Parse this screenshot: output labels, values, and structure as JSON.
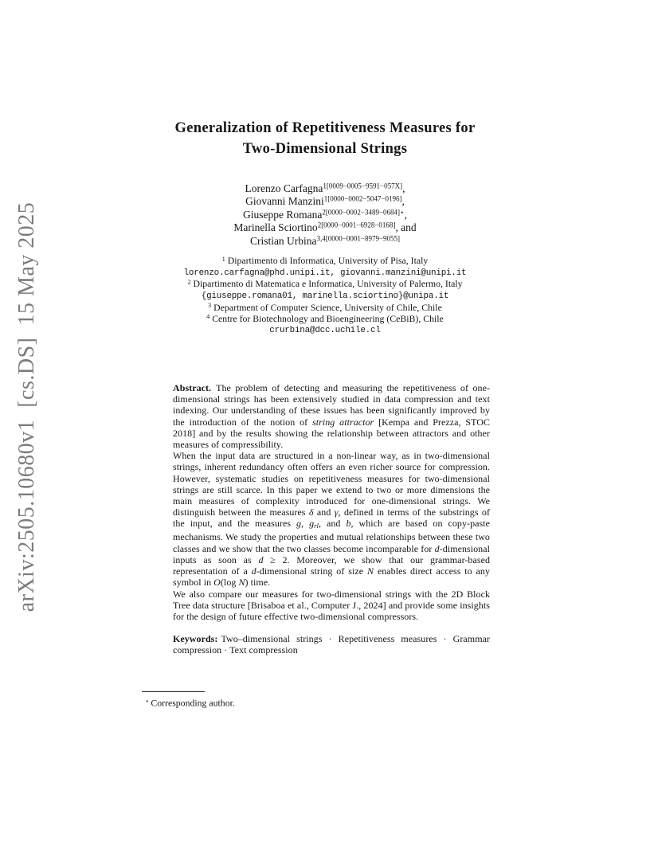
{
  "colors": {
    "text": "#161616",
    "watermark": "#7c7c7c"
  },
  "watermark": {
    "text": "arXiv:2505.10680v1  [cs.DS]  15 May 2025"
  },
  "title": {
    "line1": "Generalization of Repetitiveness Measures for",
    "line2": "Two-Dimensional Strings"
  },
  "authors": [
    {
      "name": "Lorenzo Carfagna",
      "orcid_sup": "1[0009−0005−9591−057X]",
      "suffix": ","
    },
    {
      "name": "Giovanni Manzini",
      "orcid_sup": "1[0000−0002−5047−0196]",
      "suffix": ","
    },
    {
      "name": "Giuseppe Romana",
      "orcid_sup": "2[0000−0002−3489−0684]⋆",
      "suffix": ","
    },
    {
      "name": "Marinella Sciortino",
      "orcid_sup": "2[0000−0001−6928−0168]",
      "suffix": ", and"
    },
    {
      "name": "Cristian Urbina",
      "orcid_sup": "3,4[0000−0001−8979−9055]",
      "suffix": ""
    }
  ],
  "affiliations": [
    {
      "sup": "1",
      "style": "plain",
      "text": "Dipartimento di Informatica, University of Pisa, Italy"
    },
    {
      "sup": "",
      "style": "mono",
      "text": "lorenzo.carfagna@phd.unipi.it, giovanni.manzini@unipi.it"
    },
    {
      "sup": "2",
      "style": "plain",
      "text": "Dipartimento di Matematica e Informatica, University of Palermo, Italy"
    },
    {
      "sup": "",
      "style": "mono",
      "text": "{giuseppe.romana01, marinella.sciortino}@unipa.it"
    },
    {
      "sup": "3",
      "style": "plain",
      "text": "Department of Computer Science, University of Chile, Chile"
    },
    {
      "sup": "4",
      "style": "plain",
      "text": "Centre for Biotechnology and Bioengineering (CeBiB), Chile"
    },
    {
      "sup": "",
      "style": "mono",
      "text": "crurbina@dcc.uchile.cl"
    }
  ],
  "abstract": {
    "label": "Abstract.",
    "paragraphs": [
      [
        {
          "t": "The problem of detecting and measuring the repetitiveness of one-dimensional strings has been extensively studied in data compression and text indexing. Our understanding of these issues has been significantly improved by the introduction of the notion of "
        },
        {
          "t": "string attractor",
          "s": "i"
        },
        {
          "t": " [Kempa and Prezza, STOC 2018] and by the results showing the relationship between attractors and other measures of compressibility."
        }
      ],
      [
        {
          "t": "When the input data are structured in a non-linear way, as in two-dimensional strings, inherent redundancy often offers an even richer source for compression. However, systematic studies on repetitiveness measures for two-dimensional strings are still scarce. In this paper we extend to two or more dimensions the main measures of complexity introduced for one-dimensional strings. We distinguish between the measures "
        },
        {
          "t": "δ",
          "s": "i"
        },
        {
          "t": " and "
        },
        {
          "t": "γ",
          "s": "i"
        },
        {
          "t": ", defined in terms of the substrings of the input, and the measures "
        },
        {
          "t": "g",
          "s": "i"
        },
        {
          "t": ", "
        },
        {
          "t": "g",
          "s": "i"
        },
        {
          "t": "rl",
          "s": "isub"
        },
        {
          "t": ", and "
        },
        {
          "t": "b",
          "s": "i"
        },
        {
          "t": ", which are based on copy-paste mechanisms. We study the properties and mutual relationships between these two classes and we show that the two classes become incomparable for "
        },
        {
          "t": "d",
          "s": "i"
        },
        {
          "t": "-dimensional inputs as soon as "
        },
        {
          "t": "d",
          "s": "i"
        },
        {
          "t": " ≥ 2. Moreover, we show that our grammar-based representation of a "
        },
        {
          "t": "d",
          "s": "i"
        },
        {
          "t": "-dimensional string of size "
        },
        {
          "t": "N",
          "s": "i"
        },
        {
          "t": " enables direct access to any symbol in "
        },
        {
          "t": "O",
          "s": "i"
        },
        {
          "t": "(log "
        },
        {
          "t": "N",
          "s": "i"
        },
        {
          "t": ") time."
        }
      ],
      [
        {
          "t": "We also compare our measures for two-dimensional strings with the 2D Block Tree data structure [Brisaboa et al., Computer J., 2024] and provide some insights for the design of future effective two-dimensional compressors."
        }
      ]
    ]
  },
  "keywords": [
    {
      "t": "Keywords:",
      "s": "b"
    },
    {
      "t": "Two–dimensional strings · Repetitiveness measures · Grammar compression · Text compression"
    }
  ],
  "footnote": {
    "marker": "⋆",
    "text": "Corresponding author."
  }
}
